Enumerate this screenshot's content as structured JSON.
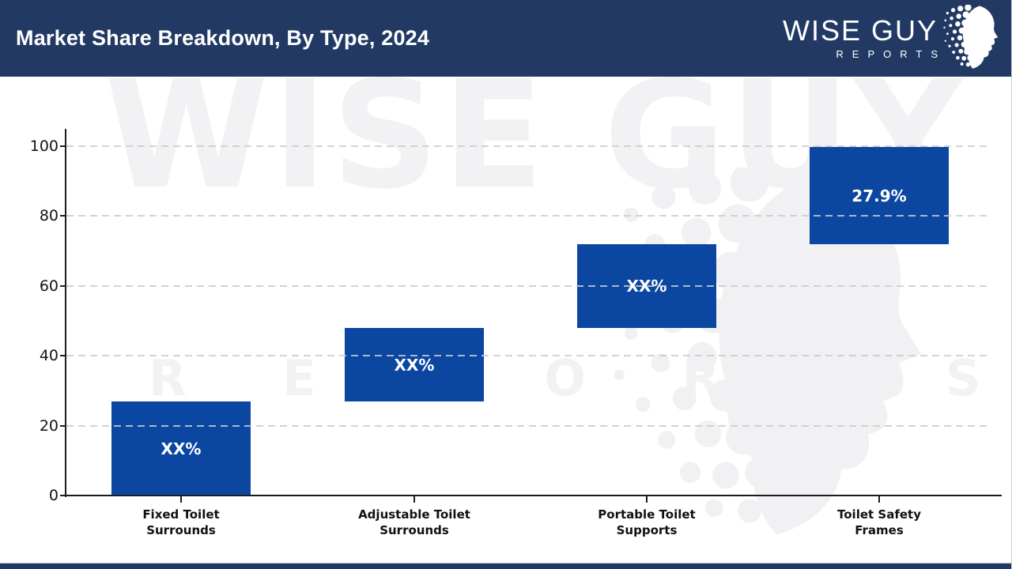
{
  "header": {
    "title": "Market Share Breakdown, By Type, 2024",
    "logo": {
      "name": "WISE GUY",
      "tagline": "REPORTS"
    }
  },
  "watermark": {
    "big_text": "WISE GUY",
    "small_text": "R E P O R T S"
  },
  "chart_data": {
    "type": "bar",
    "subtype": "floating-waterfall",
    "title": "Market Share Breakdown, By Type, 2024",
    "categories": [
      "Fixed Toilet\nSurrounds",
      "Adjustable Toilet\nSurrounds",
      "Portable Toilet\nSupports",
      "Toilet Safety\nFrames"
    ],
    "series": [
      {
        "category": "Fixed Toilet Surrounds",
        "label": "XX%",
        "start": 0,
        "end": 26.9
      },
      {
        "category": "Adjustable Toilet Surrounds",
        "label": "XX%",
        "start": 26.9,
        "end": 47.9
      },
      {
        "category": "Portable Toilet Supports",
        "label": "XX%",
        "start": 47.9,
        "end": 71.9
      },
      {
        "category": "Toilet Safety Frames",
        "label": "27.9%",
        "start": 71.9,
        "end": 99.8
      }
    ],
    "yticks": [
      0,
      20,
      40,
      60,
      80,
      100
    ],
    "ylim": [
      0,
      105
    ],
    "xlabel": "",
    "ylabel": "",
    "grid": "horizontal-dashed",
    "legend": "none",
    "bar_color": "#0b46a1"
  },
  "colors": {
    "header_bg": "#223a63",
    "bar": "#0b46a1",
    "grid": "#d8d8d8",
    "axis": "#1c1c1c",
    "bar_label": "#ffffff",
    "watermark": "#f1f1f4"
  }
}
